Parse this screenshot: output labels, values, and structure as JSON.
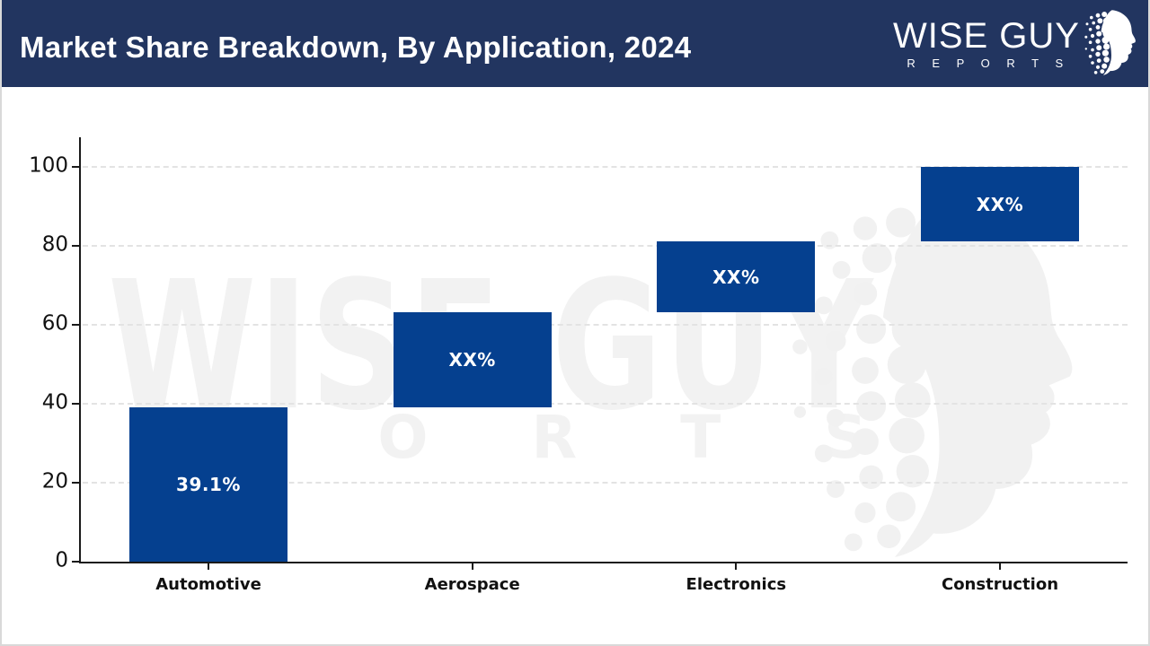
{
  "header": {
    "title": "Market Share Breakdown, By Application, 2024",
    "brand": {
      "name": "WISE GUY",
      "sub": "R E P O R T S"
    }
  },
  "watermark": {
    "line1": "WISE GUY",
    "line2": "P O R T S"
  },
  "colors": {
    "header_bg": "#223560",
    "bar": "#05408f",
    "bar_label": "#ffffff",
    "grid": "#e3e3e3",
    "axis": "#1a1a1a",
    "watermark": "#f2f2f2"
  },
  "chart_data": {
    "type": "bar",
    "subtype": "waterfall",
    "title": "Market Share Breakdown, By Application, 2024",
    "categories": [
      "Automotive",
      "Aerospace",
      "Electronics",
      "Construction"
    ],
    "segments": [
      {
        "category": "Automotive",
        "start": 0,
        "end": 39.1,
        "label": "39.1%"
      },
      {
        "category": "Aerospace",
        "start": 39.1,
        "end": 63.1,
        "label": "XX%"
      },
      {
        "category": "Electronics",
        "start": 63.1,
        "end": 81.1,
        "label": "XX%"
      },
      {
        "category": "Construction",
        "start": 81.1,
        "end": 100,
        "label": "XX%"
      }
    ],
    "xlabel": "",
    "ylabel": "",
    "ylim": [
      0,
      107
    ],
    "yticks": [
      0,
      20,
      40,
      60,
      80,
      100
    ],
    "grid": "dashed-horizontal",
    "legend": "none",
    "bar_color": "#05408f",
    "value_label_color": "#ffffff"
  }
}
